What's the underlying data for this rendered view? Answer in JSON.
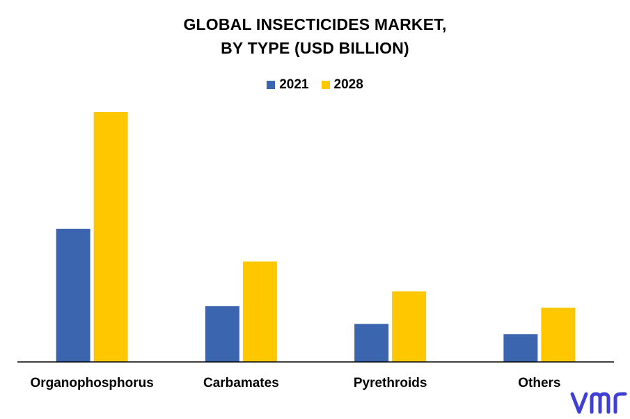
{
  "chart_data": {
    "type": "bar",
    "title_line1": "GLOBAL INSECTICIDES MARKET,",
    "title_line2": "BY TYPE (USD BILLION)",
    "categories": [
      "Organophosphorus",
      "Carbamates",
      "Pyrethroids",
      "Others"
    ],
    "series": [
      {
        "name": "2021",
        "color": "#3c65b0",
        "values": [
          4.9,
          2.05,
          1.4,
          1.02
        ]
      },
      {
        "name": "2028",
        "color": "#fec700",
        "values": [
          9.2,
          3.7,
          2.6,
          2.0
        ]
      }
    ],
    "ylim": [
      0,
      9.5
    ],
    "grid": false,
    "legend_position": "top-center"
  },
  "logo": {
    "text": "vmr",
    "color": "#3f3fd6"
  }
}
